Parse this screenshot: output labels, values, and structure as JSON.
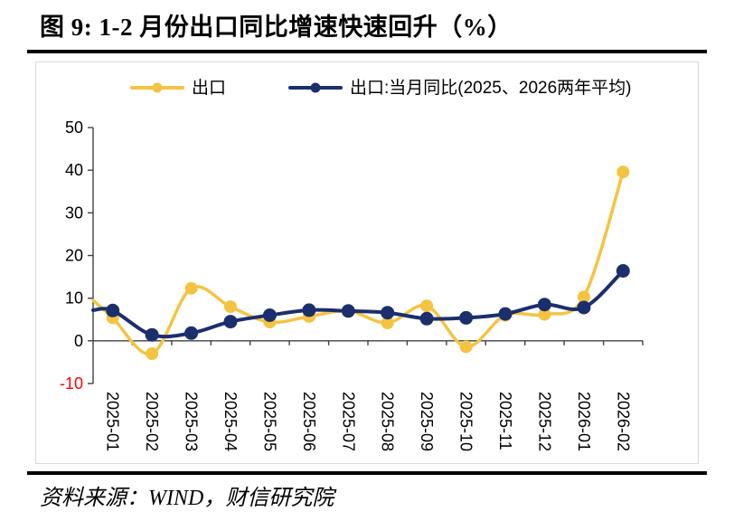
{
  "title": "图 9:  1-2 月份出口同比增速快速回升（%）",
  "footer": "资料来源：WIND，财信研究院",
  "chart_data": {
    "type": "line",
    "title": "图 9: 1-2 月份出口同比增速快速回升（%）",
    "categories": [
      "2025-01",
      "2025-02",
      "2025-03",
      "2025-04",
      "2025-05",
      "2025-06",
      "2025-07",
      "2025-08",
      "2025-09",
      "2025-10",
      "2025-11",
      "2025-12",
      "2026-01",
      "2026-02"
    ],
    "series": [
      {
        "name": "出口",
        "color": "#F5C342",
        "marker": "circle",
        "left_clip_value": 9.5,
        "values": [
          5.4,
          -3.0,
          12.3,
          8.0,
          4.4,
          5.7,
          7.0,
          4.2,
          8.2,
          -1.4,
          6.0,
          6.2,
          10.3,
          39.6
        ]
      },
      {
        "name": "出口:当月同比(2025、2026两年平均)",
        "color": "#1B2F6D",
        "marker": "circle",
        "left_clip_value": 7.2,
        "values": [
          7.1,
          1.4,
          1.8,
          4.5,
          6.0,
          7.2,
          7.0,
          6.6,
          5.2,
          5.4,
          6.3,
          8.5,
          7.8,
          16.4
        ]
      }
    ],
    "ylim": [
      -10,
      50
    ],
    "y_ticks": [
      "50",
      "40",
      "30",
      "20",
      "10",
      "0",
      "-10"
    ],
    "y_tick_values": [
      50,
      40,
      30,
      20,
      10,
      0,
      -10
    ],
    "negative_tick_color": "#FF0000",
    "axis_color": "#404040",
    "grid": false,
    "smooth": true,
    "legend_position": "top",
    "xlabel": "",
    "ylabel": ""
  }
}
